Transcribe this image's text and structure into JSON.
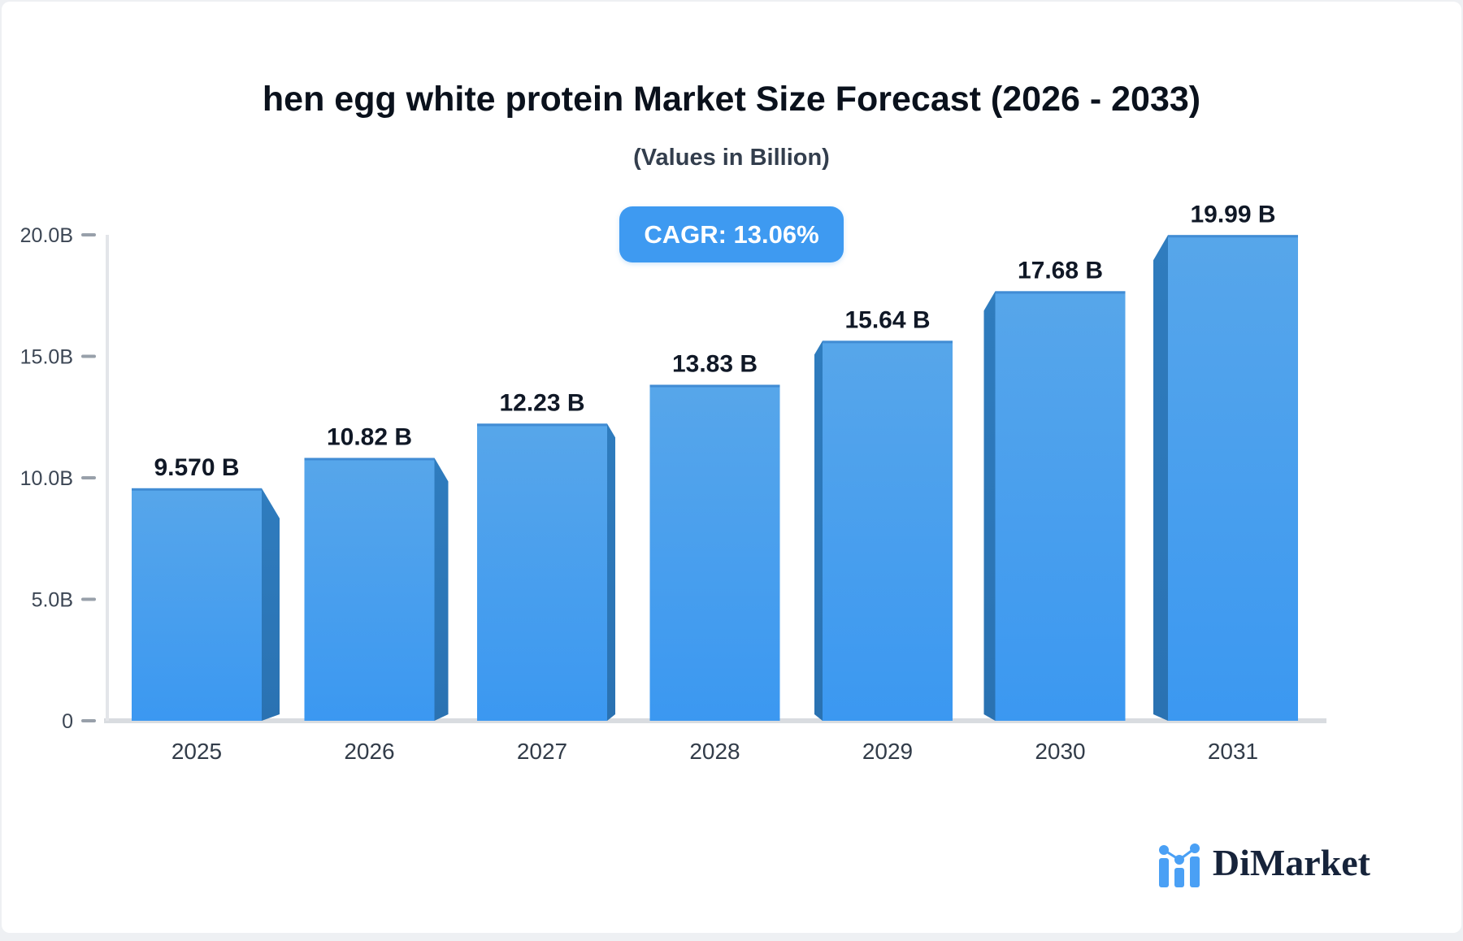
{
  "header": {
    "title": "hen egg white protein Market Size Forecast (2026 - 2033)",
    "subtitle": "(Values in Billion)",
    "badge_label": "CAGR: 13.06%"
  },
  "chart_data": {
    "type": "bar",
    "title": "hen egg white protein Market Size Forecast (2026 - 2033)",
    "subtitle": "(Values in Billion)",
    "annotation": "CAGR: 13.06%",
    "categories": [
      "2025",
      "2026",
      "2027",
      "2028",
      "2029",
      "2030",
      "2031"
    ],
    "values": [
      9.57,
      10.82,
      12.23,
      13.83,
      15.64,
      17.68,
      19.99
    ],
    "value_labels": [
      "9.570 B",
      "10.82 B",
      "12.23 B",
      "13.83 B",
      "15.64 B",
      "17.68 B",
      "19.99 B"
    ],
    "xlabel": "",
    "ylabel": "",
    "ylim": [
      0,
      20
    ],
    "yticks": [
      0,
      5,
      10,
      15,
      20
    ],
    "ytick_labels": [
      "0",
      "5.0B",
      "10.0B",
      "15.0B",
      "20.0B"
    ],
    "grid": false,
    "legend_position": "none",
    "bar_style": "3d-pseudo-perspective"
  },
  "colors": {
    "bar_front_top": "#57a6ea",
    "bar_front_bottom": "#3b98f1",
    "bar_top_edge": "#418cd4",
    "bar_side_face": "#2c77b9",
    "badge_bg": "#3e9af1",
    "axis_line": "#e3e5e9",
    "baseline": "#d9dce0",
    "tick_dash": "#98a0aa",
    "ytick_text": "#3c4654",
    "xtick_text": "#323c49",
    "value_text": "#101826",
    "logo_navy": "#16233a",
    "logo_blue": "#4aa0f5"
  },
  "logo": {
    "text": "DiMarket"
  }
}
